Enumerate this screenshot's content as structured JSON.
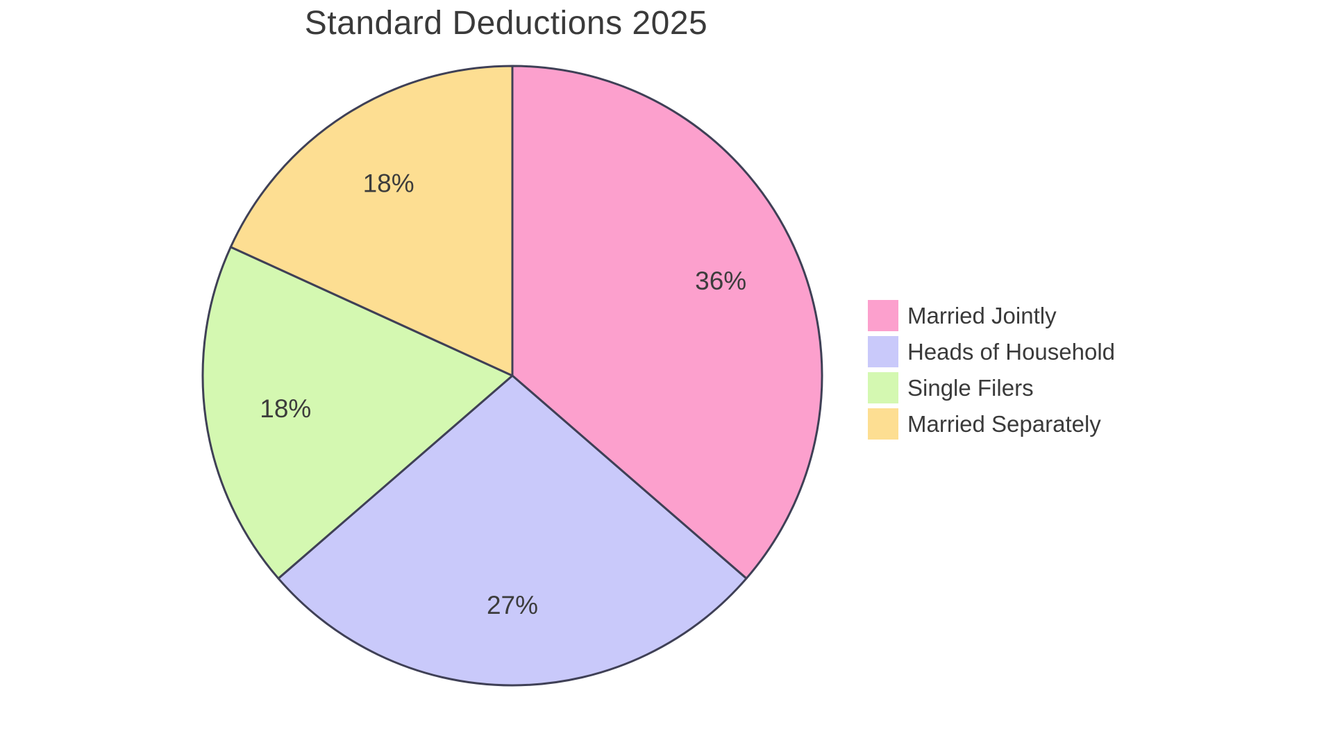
{
  "page": {
    "background": "#FFFFFF",
    "text_color": "#3A3A3A"
  },
  "chart_data": {
    "type": "pie",
    "title": "Standard Deductions 2025",
    "categories": [
      "Married Jointly",
      "Heads of Household",
      "Single Filers",
      "Married Separately"
    ],
    "values": [
      36,
      27,
      18,
      18
    ],
    "value_labels": [
      "36%",
      "27%",
      "18%",
      "18%"
    ],
    "unit": "%",
    "slice_colors": [
      "#FCA0CD",
      "#C9C9FA",
      "#D4F8B1",
      "#FDDE92"
    ],
    "slice_stroke_color": "#3F4056",
    "slice_stroke_width": 3,
    "start_angle_deg": 0,
    "direction": "clockwise",
    "legend_position": "right",
    "legend_items": [
      {
        "label": "Married Jointly",
        "color": "#FCA0CD"
      },
      {
        "label": "Heads of Household",
        "color": "#C9C9FA"
      },
      {
        "label": "Single Filers",
        "color": "#D4F8B1"
      },
      {
        "label": "Married Separately",
        "color": "#FDDE92"
      }
    ]
  }
}
